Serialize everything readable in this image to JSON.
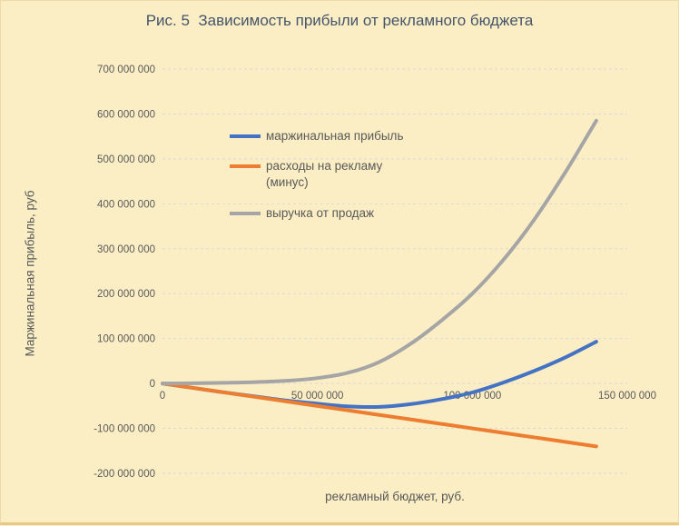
{
  "colors": {
    "background": "#FBEEC5",
    "border": "#E6C987",
    "title_text": "#44546A",
    "axis_text": "#595959",
    "gridline": "#D9D9D9",
    "series_blue": "#4472C4",
    "series_orange": "#ED7D31",
    "series_gray": "#A5A5A5"
  },
  "chart_data": {
    "type": "line",
    "title": "Рис. 5  Зависимость прибыли от рекламного бюджета",
    "xlabel": "рекламный бюджет, руб.",
    "ylabel": "Маржинальная прибыль, руб",
    "xlim": [
      0,
      150000000
    ],
    "ylim": [
      -200000000,
      700000000
    ],
    "grid": "horizontal-dashed",
    "legend_position": "inside-top-left",
    "x_ticks": {
      "values": [
        0,
        50000000,
        100000000,
        150000000
      ],
      "labels": [
        "0",
        "50 000 000",
        "100 000 000",
        "150 000 000"
      ]
    },
    "y_ticks": {
      "values": [
        -200000000,
        -100000000,
        0,
        100000000,
        200000000,
        300000000,
        400000000,
        500000000,
        600000000,
        700000000
      ],
      "labels": [
        "-200 000 000",
        "-100 000 000",
        "0",
        "100 000 000",
        "200 000 000",
        "300 000 000",
        "400 000 000",
        "500 000 000",
        "600 000 000",
        "700 000 000"
      ]
    },
    "x": [
      0,
      10000000,
      20000000,
      30000000,
      40000000,
      50000000,
      60000000,
      70000000,
      80000000,
      90000000,
      100000000,
      110000000,
      120000000,
      130000000,
      140000000
    ],
    "series": [
      {
        "name": "маржинальная прибыль",
        "slug": "margin-profit",
        "color": "#4472C4",
        "values": [
          0,
          -10000000,
          -20000000,
          -29000000,
          -38000000,
          -45000000,
          -51000000,
          -52000000,
          -46000000,
          -35000000,
          -20000000,
          2000000,
          28000000,
          58000000,
          93000000
        ]
      },
      {
        "name": "расходы на рекламу (минус)",
        "slug": "ad-spend",
        "color": "#ED7D31",
        "values": [
          0,
          -10000000,
          -20000000,
          -30000000,
          -40000000,
          -50000000,
          -60000000,
          -70000000,
          -80000000,
          -90000000,
          -100000000,
          -110000000,
          -120000000,
          -130000000,
          -140000000
        ]
      },
      {
        "name": "выручка от продаж",
        "slug": "revenue",
        "color": "#A5A5A5",
        "values": [
          0,
          500000,
          1500000,
          3000000,
          6000000,
          12000000,
          24000000,
          48000000,
          88000000,
          140000000,
          200000000,
          275000000,
          365000000,
          470000000,
          585000000
        ]
      }
    ]
  }
}
